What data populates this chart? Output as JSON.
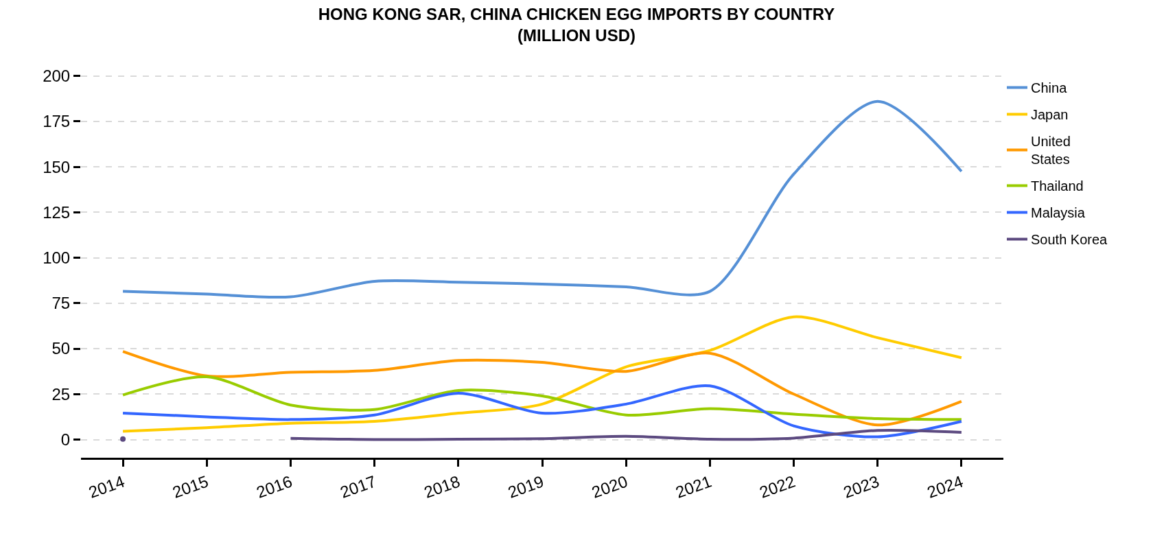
{
  "chart_data": {
    "type": "line",
    "title": "HONG KONG SAR, CHINA CHICKEN EGG IMPORTS BY COUNTRY (MILLION USD)",
    "x": [
      2014,
      2015,
      2016,
      2017,
      2018,
      2019,
      2020,
      2021,
      2022,
      2023,
      2024
    ],
    "xlim": [
      2013.5,
      2024.5
    ],
    "xticks": [
      2014,
      2015,
      2016,
      2017,
      2018,
      2019,
      2020,
      2021,
      2022,
      2023,
      2024
    ],
    "ylim": [
      -10,
      201
    ],
    "yticks": [
      0,
      25,
      50,
      75,
      100,
      125,
      150,
      175,
      200
    ],
    "grid": "y",
    "legend": "right",
    "marker": "none",
    "line_style": "solid",
    "series": [
      {
        "name": "China",
        "color": "#5590d6",
        "values": [
          81.5,
          80,
          78.5,
          87,
          86.5,
          85.5,
          84,
          81.5,
          146,
          186,
          147.5
        ]
      },
      {
        "name": "Japan",
        "color": "#ffcc00",
        "values": [
          4.5,
          6.5,
          9,
          10,
          14.5,
          19.5,
          40,
          49,
          67.5,
          56,
          45
        ]
      },
      {
        "name": "United States",
        "color": "#ff9900",
        "values": [
          48.5,
          35,
          37,
          38,
          43.5,
          42.5,
          37.5,
          47.5,
          25,
          8,
          21
        ]
      },
      {
        "name": "Thailand",
        "color": "#99cc00",
        "values": [
          24.5,
          34.5,
          19,
          16.5,
          27,
          24,
          13.5,
          17,
          14,
          11.5,
          11
        ]
      },
      {
        "name": "Malaysia",
        "color": "#3366ff",
        "values": [
          14.5,
          12.5,
          11,
          13.5,
          25.5,
          14.5,
          19.5,
          29.5,
          7.5,
          1.5,
          10
        ]
      },
      {
        "name": "South Korea",
        "color": "#5c4a80",
        "values": [
          0.3,
          null,
          0.7,
          0,
          0.2,
          0.5,
          1.8,
          0.2,
          0.8,
          5,
          4
        ]
      }
    ]
  }
}
